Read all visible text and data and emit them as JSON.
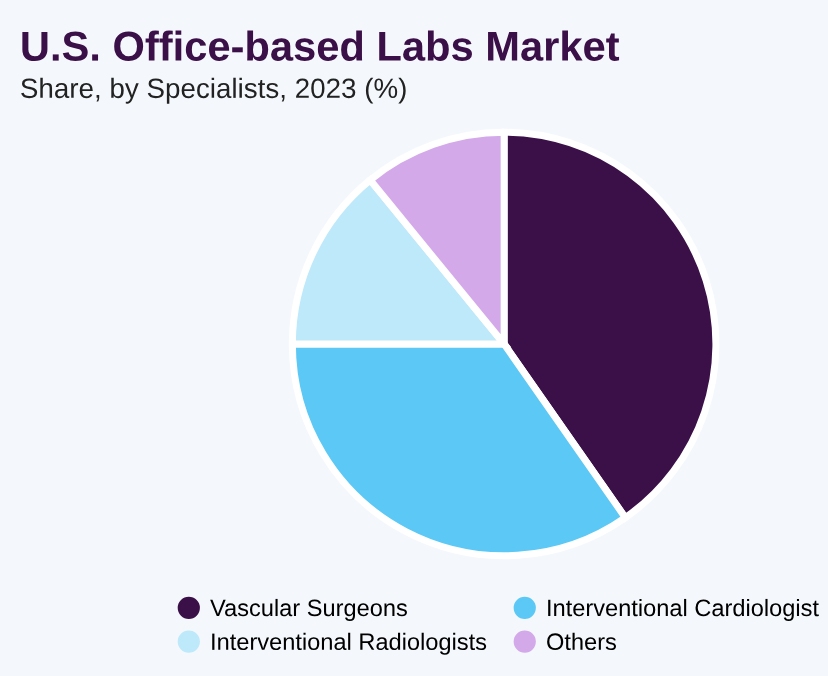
{
  "chart_data": {
    "type": "pie",
    "title": "U.S. Office-based Labs Market",
    "subtitle": "Share, by Specialists, 2023 (%)",
    "categories": [
      "Vascular Surgeons",
      "Interventional Cardiologist",
      "Interventional Radiologists",
      "Others"
    ],
    "values": [
      40.3,
      34.7,
      14.1,
      10.9
    ],
    "colors": [
      "#3b0f47",
      "#5bc8f5",
      "#bde9fa",
      "#d3a9ea"
    ],
    "legend": "bottom"
  }
}
